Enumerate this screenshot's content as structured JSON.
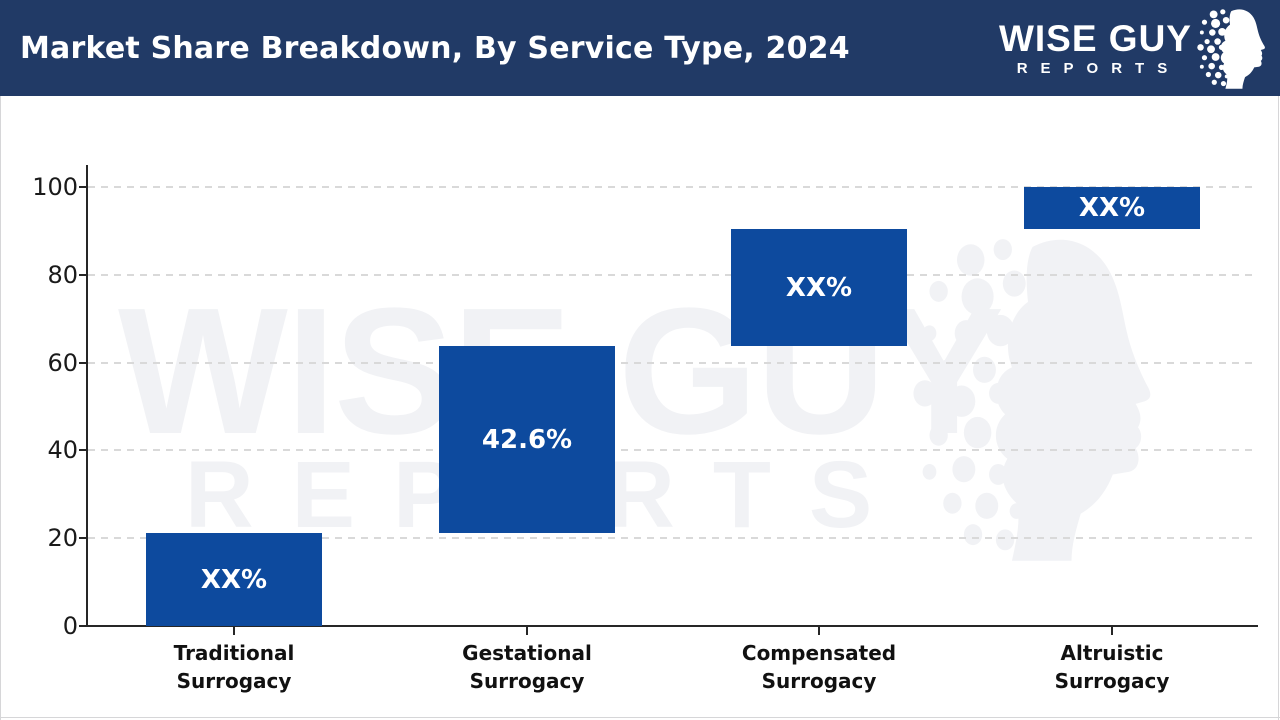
{
  "header": {
    "title": "Market Share Breakdown, By Service Type, 2024",
    "brand": {
      "name_top": "WISE GUY",
      "name_bottom": "REPORTS"
    }
  },
  "watermark": {
    "name_top": "WISE GUY",
    "name_bottom": "REPORTS"
  },
  "colors": {
    "header_bg": "#213a66",
    "bar": "#0d4a9e",
    "grid": "#d9d9d9",
    "axis": "#262626",
    "tick_text": "#1a1a1a",
    "bar_label_text": "#ffffff",
    "title_text": "#ffffff",
    "watermark": "#f1f2f5"
  },
  "chart_data": {
    "type": "bar",
    "subtype": "waterfall",
    "title": "Market Share Breakdown, By Service Type, 2024",
    "xlabel": "",
    "ylabel": "",
    "ylim": [
      0,
      105
    ],
    "y_ticks": [
      0,
      20,
      40,
      60,
      80,
      100
    ],
    "grid": "horizontal-dashed",
    "legend": "none",
    "categories": [
      [
        "Traditional",
        "Surrogacy"
      ],
      [
        "Gestational",
        "Surrogacy"
      ],
      [
        "Compensated",
        "Surrogacy"
      ],
      [
        "Altruistic",
        "Surrogacy"
      ]
    ],
    "segments": [
      {
        "label": "XX%",
        "start": 0,
        "end": 21.2,
        "value_shown": false
      },
      {
        "label": "42.6%",
        "start": 21.2,
        "end": 63.8,
        "value": 42.6,
        "value_shown": true
      },
      {
        "label": "XX%",
        "start": 63.8,
        "end": 90.4,
        "value_shown": false
      },
      {
        "label": "XX%",
        "start": 90.4,
        "end": 100,
        "value_shown": false
      }
    ]
  }
}
